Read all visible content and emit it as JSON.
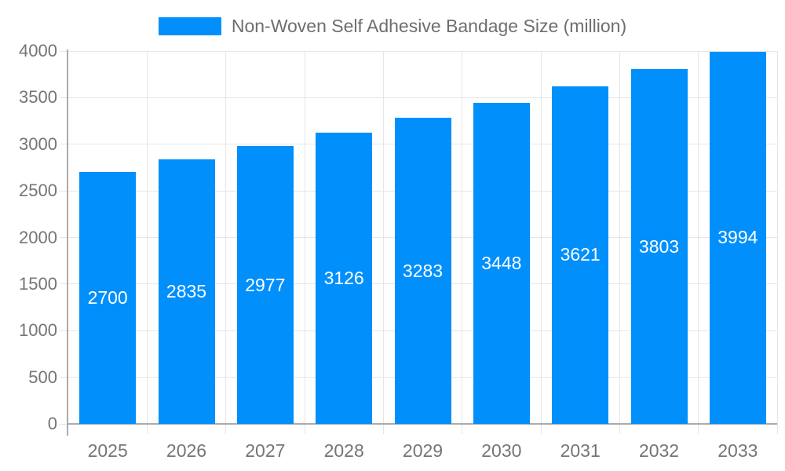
{
  "chart_data": {
    "type": "bar",
    "title": "Non-Woven Self Adhesive Bandage Size (million)",
    "categories": [
      "2025",
      "2026",
      "2027",
      "2028",
      "2029",
      "2030",
      "2031",
      "2032",
      "2033"
    ],
    "series": [
      {
        "name": "Non-Woven Self Adhesive Bandage Size (million)",
        "values": [
          2700,
          2835,
          2977,
          3126,
          3283,
          3448,
          3621,
          3803,
          3994
        ]
      }
    ],
    "xlabel": "",
    "ylabel": "",
    "ylim": [
      0,
      4000
    ],
    "yticks": [
      0,
      500,
      1000,
      1500,
      2000,
      2500,
      3000,
      3500,
      4000
    ],
    "grid": true,
    "data_labels": true,
    "legend_position": "top"
  },
  "style": {
    "bar_color": "#008FFB",
    "grid_color": "#E6E6E6",
    "axis_color": "#ABABAB",
    "tick_label_color": "#757575",
    "legend_text_color": "#6E6E6E",
    "data_label_color": "#FFFFFF",
    "background": "#FFFFFF"
  }
}
